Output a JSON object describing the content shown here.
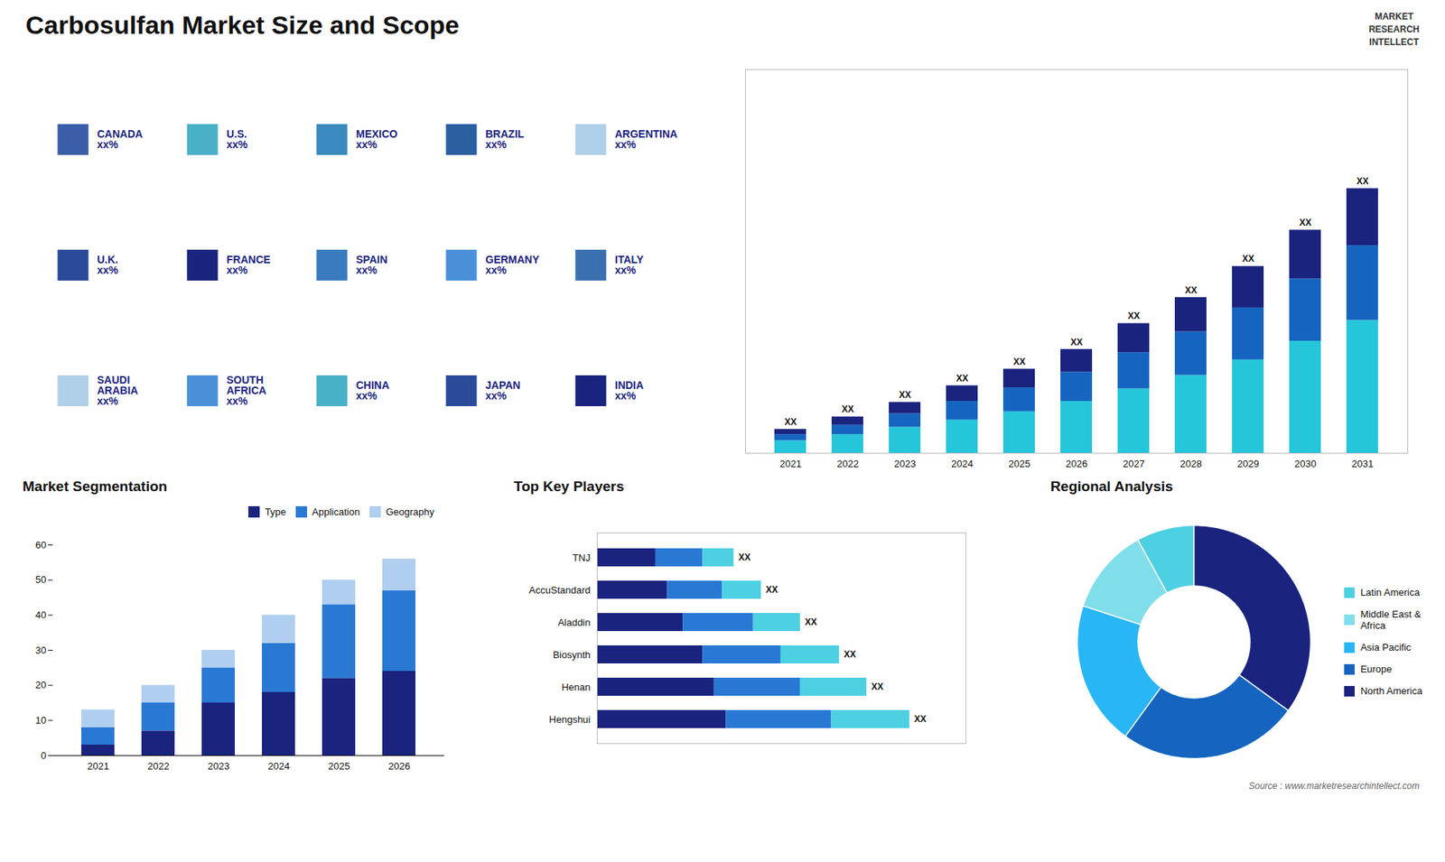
{
  "chart_data": [
    {
      "type": "bar",
      "stacked": true,
      "title": "Carbosulfan Market Size and Scope",
      "categories": [
        "2021",
        "2022",
        "2023",
        "2024",
        "2025",
        "2026",
        "2027",
        "2028",
        "2029",
        "2030",
        "2031"
      ],
      "series": [
        {
          "color": "#26c6da",
          "values": [
            1.2,
            1.8,
            2.5,
            3.2,
            4.0,
            5.0,
            6.2,
            7.5,
            9.0,
            10.8,
            12.8
          ]
        },
        {
          "color": "#1565c0",
          "values": [
            0.6,
            0.9,
            1.3,
            1.8,
            2.3,
            2.8,
            3.5,
            4.2,
            5.0,
            6.0,
            7.2
          ]
        },
        {
          "color": "#1a237e",
          "values": [
            0.5,
            0.8,
            1.1,
            1.5,
            1.8,
            2.2,
            2.8,
            3.3,
            4.0,
            4.7,
            5.5
          ]
        }
      ],
      "ylim": [
        0,
        36.975
      ],
      "tick_labels": "x",
      "grid": false,
      "data_labels": true,
      "value_labels": [
        "XX",
        "XX",
        "XX",
        "XX",
        "XX",
        "XX",
        "XX",
        "XX",
        "XX",
        "XX",
        "XX"
      ],
      "annotations": [
        "MARKET\nRESEARCH\nINTELLECT",
        "Source : www.marketresearchintellect.com"
      ]
    },
    {
      "type": "map",
      "categories": [
        "CANADA\nxx%",
        "U.S.\nxx%",
        "MEXICO\nxx%",
        "BRAZIL\nxx%",
        "ARGENTINA\nxx%",
        "U.K.\nxx%",
        "FRANCE\nxx%",
        "SPAIN\nxx%",
        "GERMANY\nxx%",
        "ITALY\nxx%",
        "SAUDI\nARABIA\nxx%",
        "SOUTH\nAFRICA\nxx%",
        "CHINA\nxx%",
        "JAPAN\nxx%",
        "INDIA\nxx%"
      ],
      "colors": [
        "#3a5fa8",
        "#4ab0c8",
        "#3a8abf",
        "#2a5fa0",
        "#b0cfe8",
        "#2a4a9a",
        "#1a237e",
        "#3a7bbf",
        "#4a90d9",
        "#3a70b0",
        "#b0cfe8",
        "#4a90d9",
        "#4ab0c8",
        "#2a4a9a",
        "#1a237e"
      ]
    },
    {
      "type": "bar",
      "stacked": true,
      "title": "Market Segmentation",
      "categories": [
        "2021",
        "2022",
        "2023",
        "2024",
        "2025",
        "2026"
      ],
      "series": [
        {
          "name": "Type",
          "color": "#1a237e",
          "values": [
            3,
            7,
            15,
            18,
            22,
            24
          ]
        },
        {
          "name": "Application",
          "color": "#2979d4",
          "values": [
            5,
            8,
            10,
            14,
            21,
            23
          ]
        },
        {
          "name": "Geography",
          "color": "#b0cff0",
          "values": [
            5,
            5,
            5,
            8,
            7,
            9
          ]
        }
      ],
      "ylim": [
        0,
        60
      ],
      "yticks": [
        0,
        10,
        20,
        30,
        40,
        50,
        60
      ],
      "grid": false,
      "legend": "upper right"
    },
    {
      "type": "bar",
      "orientation": "horizontal",
      "stacked": true,
      "title": "Top Key Players",
      "categories": [
        "Hengshui",
        "Henan",
        "Biosynth",
        "Aladdin",
        "AccuStandard",
        "TNJ"
      ],
      "series": [
        {
          "color": "#1a237e",
          "values": [
            0.33,
            0.3,
            0.27,
            0.22,
            0.18,
            0.15
          ]
        },
        {
          "color": "#2979d4",
          "values": [
            0.27,
            0.22,
            0.2,
            0.18,
            0.14,
            0.12
          ]
        },
        {
          "color": "#4dd0e1",
          "values": [
            0.2,
            0.17,
            0.15,
            0.12,
            0.1,
            0.08
          ]
        }
      ],
      "xlim": [
        0,
        0.944
      ],
      "tick_labels": "y",
      "grid": false,
      "data_labels": true,
      "value_labels": [
        "XX",
        "XX",
        "XX",
        "XX",
        "XX",
        "XX"
      ]
    },
    {
      "type": "pie",
      "title": "Regional Analysis",
      "categories": [
        "Latin America",
        "Middle East &\nAfrica",
        "Asia Pacific",
        "Europe",
        "North America"
      ],
      "values": [
        8,
        12,
        20,
        25,
        35
      ],
      "colors": [
        "#4dd0e1",
        "#80deea",
        "#29b6f6",
        "#1565c0",
        "#1a237e"
      ],
      "legend": "right"
    }
  ]
}
